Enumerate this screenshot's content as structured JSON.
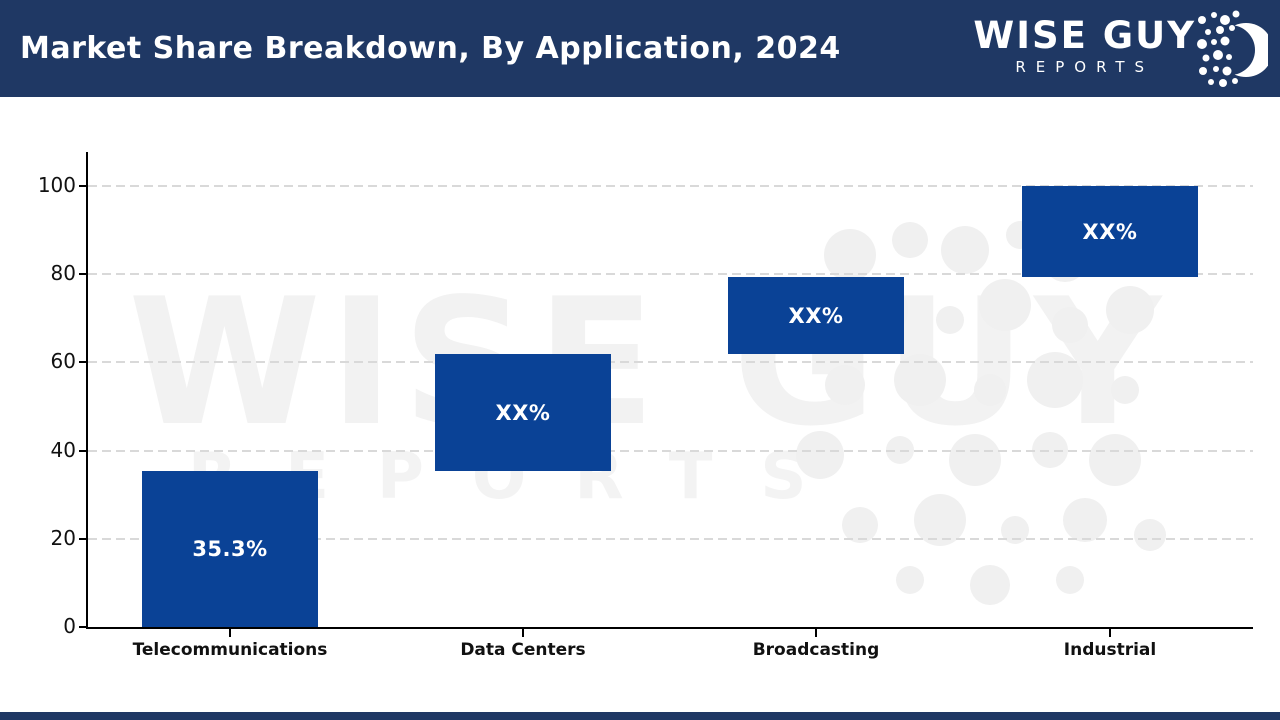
{
  "header": {
    "title": "Market Share Breakdown, By Application, 2024",
    "logo": {
      "line1": "WISE GUY",
      "line2": "REPORTS"
    }
  },
  "watermark": {
    "line1": "WISE GUY",
    "line2": "REPORTS"
  },
  "chart_data": {
    "type": "waterfall",
    "title": "Market Share Breakdown, By Application, 2024",
    "categories": [
      "Telecommunications",
      "Data Centers",
      "Broadcasting",
      "Industrial"
    ],
    "segments": [
      {
        "category": "Telecommunications",
        "start": 0,
        "end": 35.3,
        "label": "35.3%"
      },
      {
        "category": "Data Centers",
        "start": 35.3,
        "end": 61.8,
        "label": "XX%"
      },
      {
        "category": "Broadcasting",
        "start": 61.8,
        "end": 79.3,
        "label": "XX%"
      },
      {
        "category": "Industrial",
        "start": 79.3,
        "end": 100,
        "label": "XX%"
      }
    ],
    "yticks": [
      0,
      20,
      40,
      60,
      80,
      100
    ],
    "ylim": [
      0,
      105
    ],
    "grid": "dashed-horizontal",
    "legend": "none",
    "xlabel": "",
    "ylabel": ""
  },
  "colors": {
    "header_bg": "#1f3864",
    "bar": "#0a4296",
    "bar_label": "#ffffff",
    "gridline": "#d9d9d9",
    "axis": "#000000",
    "watermark": "#f2f2f2"
  }
}
